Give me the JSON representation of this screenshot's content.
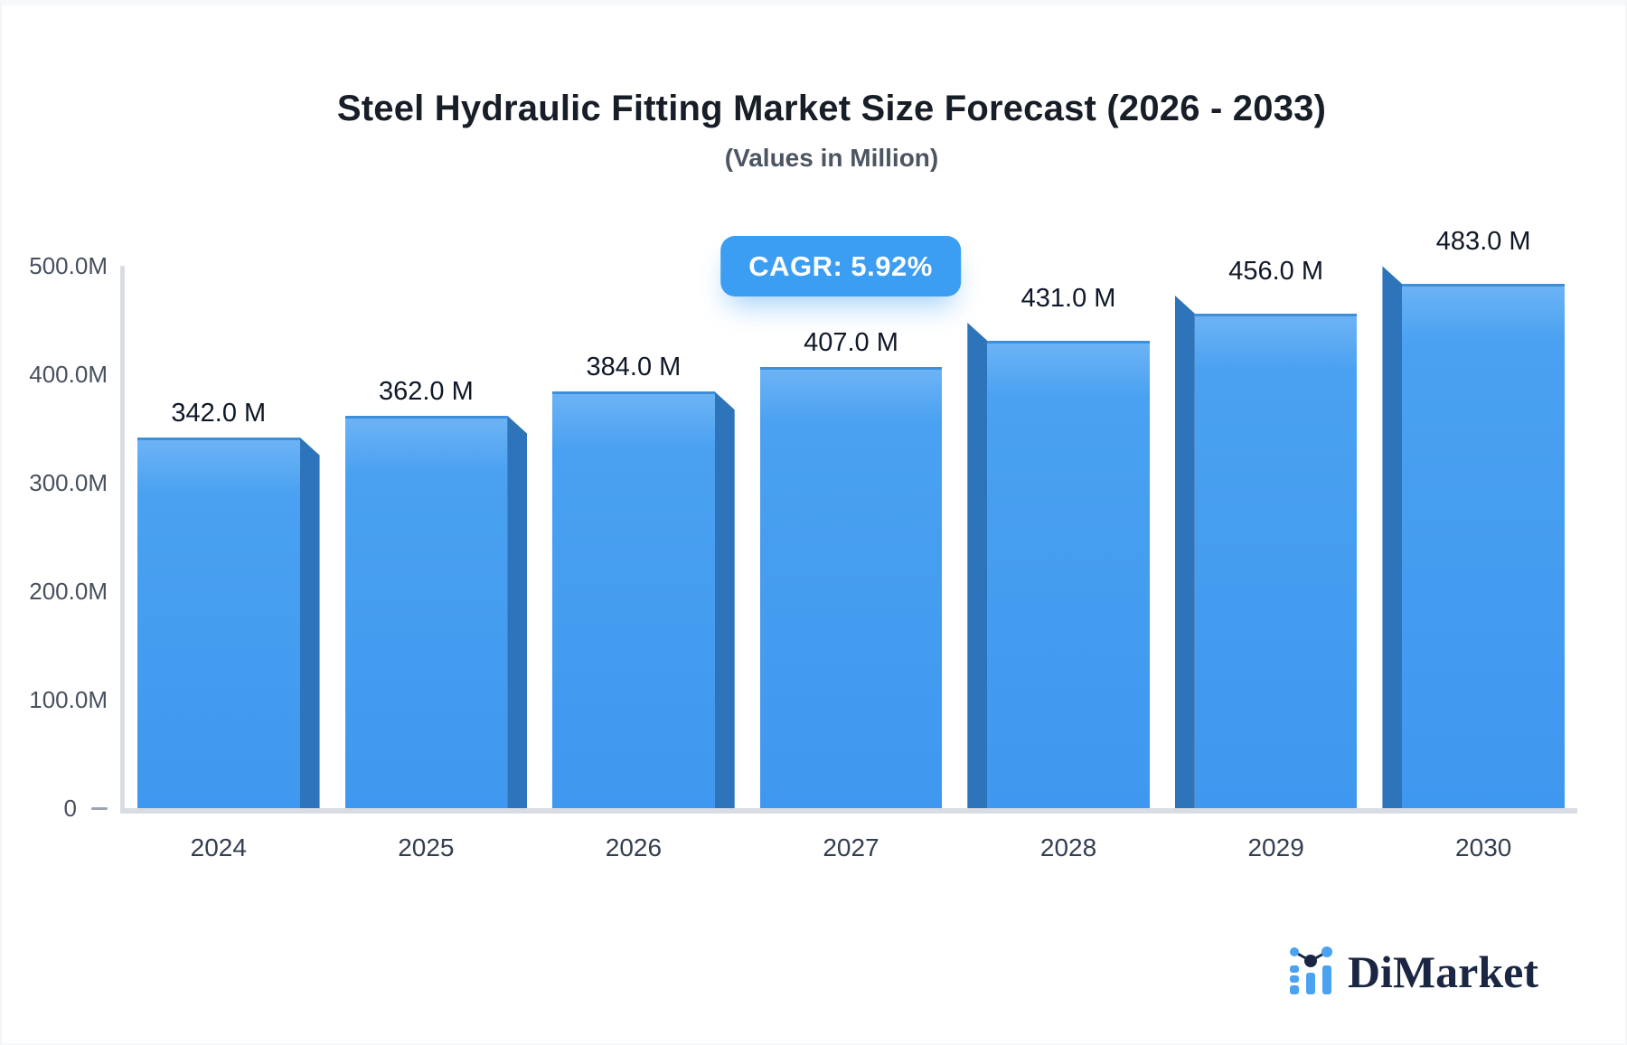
{
  "header": {
    "title": "Steel Hydraulic Fitting Market Size Forecast (2026 - 2033)",
    "subtitle": "(Values in Million)"
  },
  "badge": {
    "label": "CAGR: 5.92%"
  },
  "chart_data": {
    "type": "bar",
    "title": "Steel Hydraulic Fitting Market Size Forecast (2026 - 2033)",
    "subtitle": "(Values in Million)",
    "categories": [
      "2024",
      "2025",
      "2026",
      "2027",
      "2028",
      "2029",
      "2030"
    ],
    "values": [
      342,
      362,
      384,
      407,
      431,
      456,
      483
    ],
    "bar_labels": [
      "342.0 M",
      "362.0 M",
      "384.0 M",
      "407.0 M",
      "431.0 M",
      "456.0 M",
      "483.0 M"
    ],
    "xlabel": "",
    "ylabel": "",
    "ylim": [
      0,
      500
    ],
    "y_ticks": [
      {
        "label": "500.0M",
        "value": 500
      },
      {
        "label": "400.0M",
        "value": 400
      },
      {
        "label": "300.0M",
        "value": 300
      },
      {
        "label": "200.0M",
        "value": 200
      },
      {
        "label": "100.0M",
        "value": 100
      },
      {
        "label": "0",
        "value": 0
      }
    ],
    "grid": false,
    "legend": false,
    "style": "pseudo-3d-perspective"
  },
  "colors": {
    "bar_top": "#6cb3f5",
    "bar_mid": "#4aa1f1",
    "bar_main": "#3f98ef",
    "bar_edge": "#3e8fda",
    "bar_side": "#2d74bb",
    "badge_bg": "#3b9ef2",
    "axis_line": "#d9dde3",
    "logo_navy": "#1b2742",
    "logo_blue": "#4aa2f1"
  },
  "logo": {
    "text": "DiMarket"
  }
}
